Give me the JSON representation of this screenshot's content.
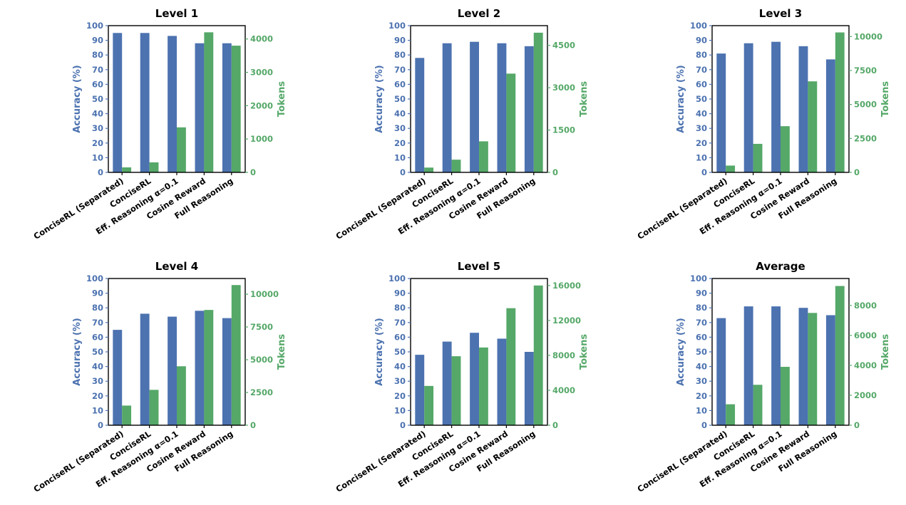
{
  "figure": {
    "background": "#ffffff"
  },
  "colors": {
    "accuracy": "#4C72B0",
    "tokens": "#55A868",
    "frame": "#000000",
    "xtick_text": "#000000"
  },
  "axis_labels": {
    "left": "Accuracy (%)",
    "right": "Tokens"
  },
  "categories": [
    "ConciseRL (Separated)",
    "ConciseRL",
    "Eff. Reasoning α=0.1",
    "Cosine Reward",
    "Full Reasoning"
  ],
  "left_axis": {
    "min": 0,
    "max": 100,
    "ticks": [
      0,
      10,
      20,
      30,
      40,
      50,
      60,
      70,
      80,
      90,
      100
    ]
  },
  "chart_data": [
    {
      "type": "bar",
      "title": "Level 1",
      "legend_position": "none",
      "grid": false,
      "right_axis": {
        "min": 0,
        "max": 4400,
        "ticks": [
          0,
          1000,
          2000,
          3000,
          4000
        ]
      },
      "series": [
        {
          "name": "Accuracy (%)",
          "axis": "left",
          "values": [
            95,
            95,
            93,
            88,
            88
          ]
        },
        {
          "name": "Tokens",
          "axis": "right",
          "values": [
            150,
            300,
            1350,
            4200,
            3800
          ]
        }
      ]
    },
    {
      "type": "bar",
      "title": "Level 2",
      "legend_position": "none",
      "grid": false,
      "right_axis": {
        "min": 0,
        "max": 5200,
        "ticks": [
          0,
          1500,
          3000,
          4500
        ]
      },
      "series": [
        {
          "name": "Accuracy (%)",
          "axis": "left",
          "values": [
            78,
            88,
            89,
            88,
            86
          ]
        },
        {
          "name": "Tokens",
          "axis": "right",
          "values": [
            170,
            450,
            1100,
            3500,
            4950
          ]
        }
      ]
    },
    {
      "type": "bar",
      "title": "Level 3",
      "legend_position": "none",
      "grid": false,
      "right_axis": {
        "min": 0,
        "max": 10800,
        "ticks": [
          0,
          2500,
          5000,
          7500,
          10000
        ]
      },
      "series": [
        {
          "name": "Accuracy (%)",
          "axis": "left",
          "values": [
            81,
            88,
            89,
            86,
            77
          ]
        },
        {
          "name": "Tokens",
          "axis": "right",
          "values": [
            500,
            2100,
            3400,
            6700,
            10300
          ]
        }
      ]
    },
    {
      "type": "bar",
      "title": "Level 4",
      "legend_position": "none",
      "grid": false,
      "right_axis": {
        "min": 0,
        "max": 11200,
        "ticks": [
          0,
          2500,
          5000,
          7500,
          10000
        ]
      },
      "series": [
        {
          "name": "Accuracy (%)",
          "axis": "left",
          "values": [
            65,
            76,
            74,
            78,
            73
          ]
        },
        {
          "name": "Tokens",
          "axis": "right",
          "values": [
            1500,
            2700,
            4500,
            8800,
            10700
          ]
        }
      ]
    },
    {
      "type": "bar",
      "title": "Level 5",
      "legend_position": "none",
      "grid": false,
      "right_axis": {
        "min": 0,
        "max": 16800,
        "ticks": [
          0,
          4000,
          8000,
          12000,
          16000
        ]
      },
      "series": [
        {
          "name": "Accuracy (%)",
          "axis": "left",
          "values": [
            48,
            57,
            63,
            59,
            50
          ]
        },
        {
          "name": "Tokens",
          "axis": "right",
          "values": [
            4500,
            7900,
            8900,
            13400,
            16000
          ]
        }
      ]
    },
    {
      "type": "bar",
      "title": "Average",
      "legend_position": "none",
      "grid": false,
      "right_axis": {
        "min": 0,
        "max": 9800,
        "ticks": [
          0,
          2000,
          4000,
          6000,
          8000
        ]
      },
      "series": [
        {
          "name": "Accuracy (%)",
          "axis": "left",
          "values": [
            73,
            81,
            81,
            80,
            75
          ]
        },
        {
          "name": "Tokens",
          "axis": "right",
          "values": [
            1400,
            2700,
            3900,
            7500,
            9300
          ]
        }
      ]
    }
  ]
}
